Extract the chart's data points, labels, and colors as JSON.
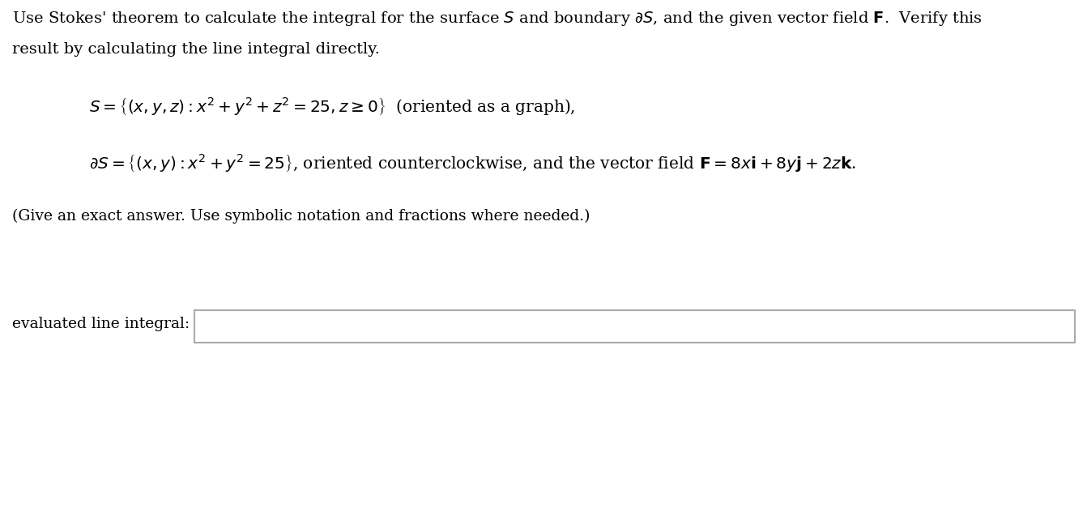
{
  "background_color": "#ffffff",
  "fig_width": 13.42,
  "fig_height": 6.42,
  "dpi": 100,
  "intro_line1": "Use Stokes' theorem to calculate the integral for the surface $S$ and boundary $\\partial S$, and the given vector field $\\mathbf{F}$.  Verify this",
  "intro_line2": "result by calculating the line integral directly.",
  "eq1": "$S = \\left\\{(x, y, z) : x^2 + y^2 + z^2 = 25, z \\geq 0\\right\\}$  (oriented as a graph),",
  "eq2": "$\\partial S = \\left\\{(x, y) : x^2 + y^2 = 25\\right\\}$, oriented counterclockwise, and the vector field $\\mathbf{F} = 8x\\mathbf{i} + 8y\\mathbf{j} + 2z\\mathbf{k}$.",
  "note": "(Give an exact answer. Use symbolic notation and fractions where needed.)",
  "label": "evaluated line integral:",
  "text_color": "#000000",
  "box_edge_color": "#aaaaaa",
  "font_size_main": 14,
  "font_size_eq": 14.5,
  "font_size_note": 13.5,
  "font_size_label": 13.5
}
